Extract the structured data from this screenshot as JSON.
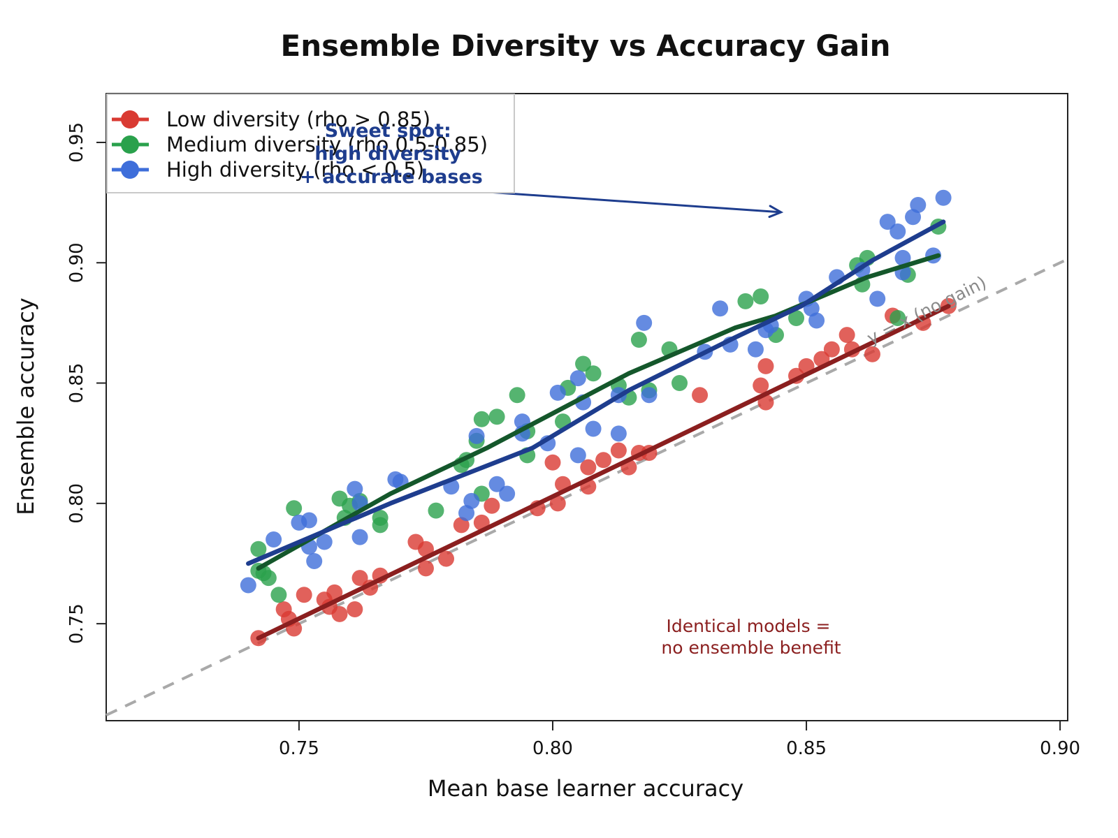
{
  "chart_data": {
    "type": "scatter",
    "title": "Ensemble Diversity vs Accuracy Gain",
    "xlabel": "Mean base learner accuracy",
    "ylabel": "Ensemble accuracy",
    "xlim": [
      0.712,
      0.9015
    ],
    "ylim": [
      0.7097,
      0.9703
    ],
    "xticks": [
      0.75,
      0.8,
      0.85,
      0.9
    ],
    "yticks": [
      0.75,
      0.8,
      0.85,
      0.9,
      0.95
    ],
    "grid": false,
    "legend_position": "top-left",
    "marker_opacity": 0.8,
    "series": [
      {
        "name": "Low diversity (rho > 0.85)",
        "color": "#d93a32",
        "points": [
          [
            0.742,
            0.744
          ],
          [
            0.747,
            0.756
          ],
          [
            0.748,
            0.752
          ],
          [
            0.749,
            0.748
          ],
          [
            0.751,
            0.762
          ],
          [
            0.755,
            0.76
          ],
          [
            0.756,
            0.757
          ],
          [
            0.757,
            0.763
          ],
          [
            0.758,
            0.754
          ],
          [
            0.761,
            0.756
          ],
          [
            0.762,
            0.769
          ],
          [
            0.764,
            0.765
          ],
          [
            0.766,
            0.77
          ],
          [
            0.773,
            0.784
          ],
          [
            0.775,
            0.781
          ],
          [
            0.775,
            0.773
          ],
          [
            0.779,
            0.777
          ],
          [
            0.782,
            0.791
          ],
          [
            0.786,
            0.792
          ],
          [
            0.788,
            0.799
          ],
          [
            0.797,
            0.798
          ],
          [
            0.8,
            0.817
          ],
          [
            0.801,
            0.8
          ],
          [
            0.802,
            0.808
          ],
          [
            0.807,
            0.807
          ],
          [
            0.807,
            0.815
          ],
          [
            0.81,
            0.818
          ],
          [
            0.813,
            0.822
          ],
          [
            0.815,
            0.815
          ],
          [
            0.817,
            0.821
          ],
          [
            0.819,
            0.821
          ],
          [
            0.829,
            0.845
          ],
          [
            0.841,
            0.849
          ],
          [
            0.842,
            0.842
          ],
          [
            0.842,
            0.857
          ],
          [
            0.848,
            0.853
          ],
          [
            0.85,
            0.857
          ],
          [
            0.853,
            0.86
          ],
          [
            0.855,
            0.864
          ],
          [
            0.858,
            0.87
          ],
          [
            0.859,
            0.864
          ],
          [
            0.863,
            0.862
          ],
          [
            0.867,
            0.878
          ],
          [
            0.873,
            0.875
          ],
          [
            0.878,
            0.882
          ]
        ]
      },
      {
        "name": "Medium diversity (rho 0.5-0.85)",
        "color": "#2aa14c",
        "points": [
          [
            0.742,
            0.781
          ],
          [
            0.742,
            0.772
          ],
          [
            0.743,
            0.771
          ],
          [
            0.744,
            0.769
          ],
          [
            0.746,
            0.762
          ],
          [
            0.749,
            0.798
          ],
          [
            0.758,
            0.802
          ],
          [
            0.759,
            0.794
          ],
          [
            0.76,
            0.799
          ],
          [
            0.762,
            0.801
          ],
          [
            0.766,
            0.794
          ],
          [
            0.766,
            0.791
          ],
          [
            0.777,
            0.797
          ],
          [
            0.782,
            0.816
          ],
          [
            0.783,
            0.818
          ],
          [
            0.785,
            0.826
          ],
          [
            0.786,
            0.835
          ],
          [
            0.786,
            0.804
          ],
          [
            0.789,
            0.836
          ],
          [
            0.793,
            0.845
          ],
          [
            0.795,
            0.83
          ],
          [
            0.795,
            0.82
          ],
          [
            0.802,
            0.834
          ],
          [
            0.803,
            0.848
          ],
          [
            0.806,
            0.858
          ],
          [
            0.808,
            0.854
          ],
          [
            0.813,
            0.849
          ],
          [
            0.815,
            0.844
          ],
          [
            0.817,
            0.868
          ],
          [
            0.819,
            0.847
          ],
          [
            0.823,
            0.864
          ],
          [
            0.825,
            0.85
          ],
          [
            0.838,
            0.884
          ],
          [
            0.841,
            0.886
          ],
          [
            0.844,
            0.87
          ],
          [
            0.848,
            0.877
          ],
          [
            0.86,
            0.899
          ],
          [
            0.861,
            0.891
          ],
          [
            0.862,
            0.902
          ],
          [
            0.868,
            0.877
          ],
          [
            0.87,
            0.895
          ],
          [
            0.876,
            0.915
          ]
        ]
      },
      {
        "name": "High diversity (rho < 0.5)",
        "color": "#3e6eda",
        "points": [
          [
            0.74,
            0.766
          ],
          [
            0.745,
            0.785
          ],
          [
            0.75,
            0.792
          ],
          [
            0.752,
            0.793
          ],
          [
            0.752,
            0.782
          ],
          [
            0.753,
            0.776
          ],
          [
            0.755,
            0.784
          ],
          [
            0.761,
            0.806
          ],
          [
            0.762,
            0.8
          ],
          [
            0.762,
            0.786
          ],
          [
            0.769,
            0.81
          ],
          [
            0.77,
            0.809
          ],
          [
            0.78,
            0.807
          ],
          [
            0.783,
            0.796
          ],
          [
            0.784,
            0.801
          ],
          [
            0.785,
            0.828
          ],
          [
            0.789,
            0.808
          ],
          [
            0.791,
            0.804
          ],
          [
            0.794,
            0.834
          ],
          [
            0.794,
            0.829
          ],
          [
            0.799,
            0.825
          ],
          [
            0.801,
            0.846
          ],
          [
            0.805,
            0.852
          ],
          [
            0.806,
            0.842
          ],
          [
            0.808,
            0.831
          ],
          [
            0.805,
            0.82
          ],
          [
            0.813,
            0.829
          ],
          [
            0.813,
            0.845
          ],
          [
            0.818,
            0.875
          ],
          [
            0.819,
            0.845
          ],
          [
            0.83,
            0.863
          ],
          [
            0.833,
            0.881
          ],
          [
            0.835,
            0.866
          ],
          [
            0.84,
            0.864
          ],
          [
            0.842,
            0.872
          ],
          [
            0.843,
            0.874
          ],
          [
            0.85,
            0.885
          ],
          [
            0.851,
            0.881
          ],
          [
            0.852,
            0.876
          ],
          [
            0.856,
            0.894
          ],
          [
            0.861,
            0.897
          ],
          [
            0.864,
            0.885
          ],
          [
            0.866,
            0.917
          ],
          [
            0.868,
            0.913
          ],
          [
            0.869,
            0.896
          ],
          [
            0.869,
            0.902
          ],
          [
            0.871,
            0.919
          ],
          [
            0.872,
            0.924
          ],
          [
            0.875,
            0.903
          ],
          [
            0.877,
            0.927
          ]
        ]
      }
    ],
    "trend_lines": [
      {
        "series": "Low diversity (rho > 0.85)",
        "color": "#8b1f1f",
        "points": [
          [
            0.742,
            0.744
          ],
          [
            0.878,
            0.882
          ]
        ]
      },
      {
        "series": "Medium diversity (rho 0.5-0.85)",
        "color": "#14572b",
        "points": [
          [
            0.742,
            0.773
          ],
          [
            0.768,
            0.804
          ],
          [
            0.787,
            0.823
          ],
          [
            0.815,
            0.854
          ],
          [
            0.836,
            0.873
          ],
          [
            0.844,
            0.878
          ],
          [
            0.862,
            0.894
          ],
          [
            0.876,
            0.903
          ]
        ]
      },
      {
        "series": "High diversity (rho < 0.5)",
        "color": "#1e3d8e",
        "points": [
          [
            0.74,
            0.775
          ],
          [
            0.768,
            0.8
          ],
          [
            0.796,
            0.823
          ],
          [
            0.815,
            0.847
          ],
          [
            0.836,
            0.869
          ],
          [
            0.849,
            0.882
          ],
          [
            0.863,
            0.901
          ],
          [
            0.877,
            0.917
          ]
        ]
      }
    ],
    "reference_line": {
      "label": "y = x  (no gain)",
      "style": "dashed",
      "color": "#a9a9a9",
      "label_color": "#8a8a8a",
      "from": [
        0.712,
        0.712
      ],
      "to": [
        0.9015,
        0.9015
      ]
    },
    "annotations": {
      "sweet_spot": {
        "lines": [
          "Sweet spot:",
          "high diversity",
          "+ accurate bases"
        ],
        "color": "#1e3d8e",
        "arrow": {
          "from": [
            0.7775,
            0.9308
          ],
          "to": [
            0.845,
            0.921
          ]
        }
      },
      "identical_models": {
        "lines": [
          "Identical models =",
          "no ensemble benefit"
        ],
        "color": "#8b1f1f"
      }
    }
  }
}
